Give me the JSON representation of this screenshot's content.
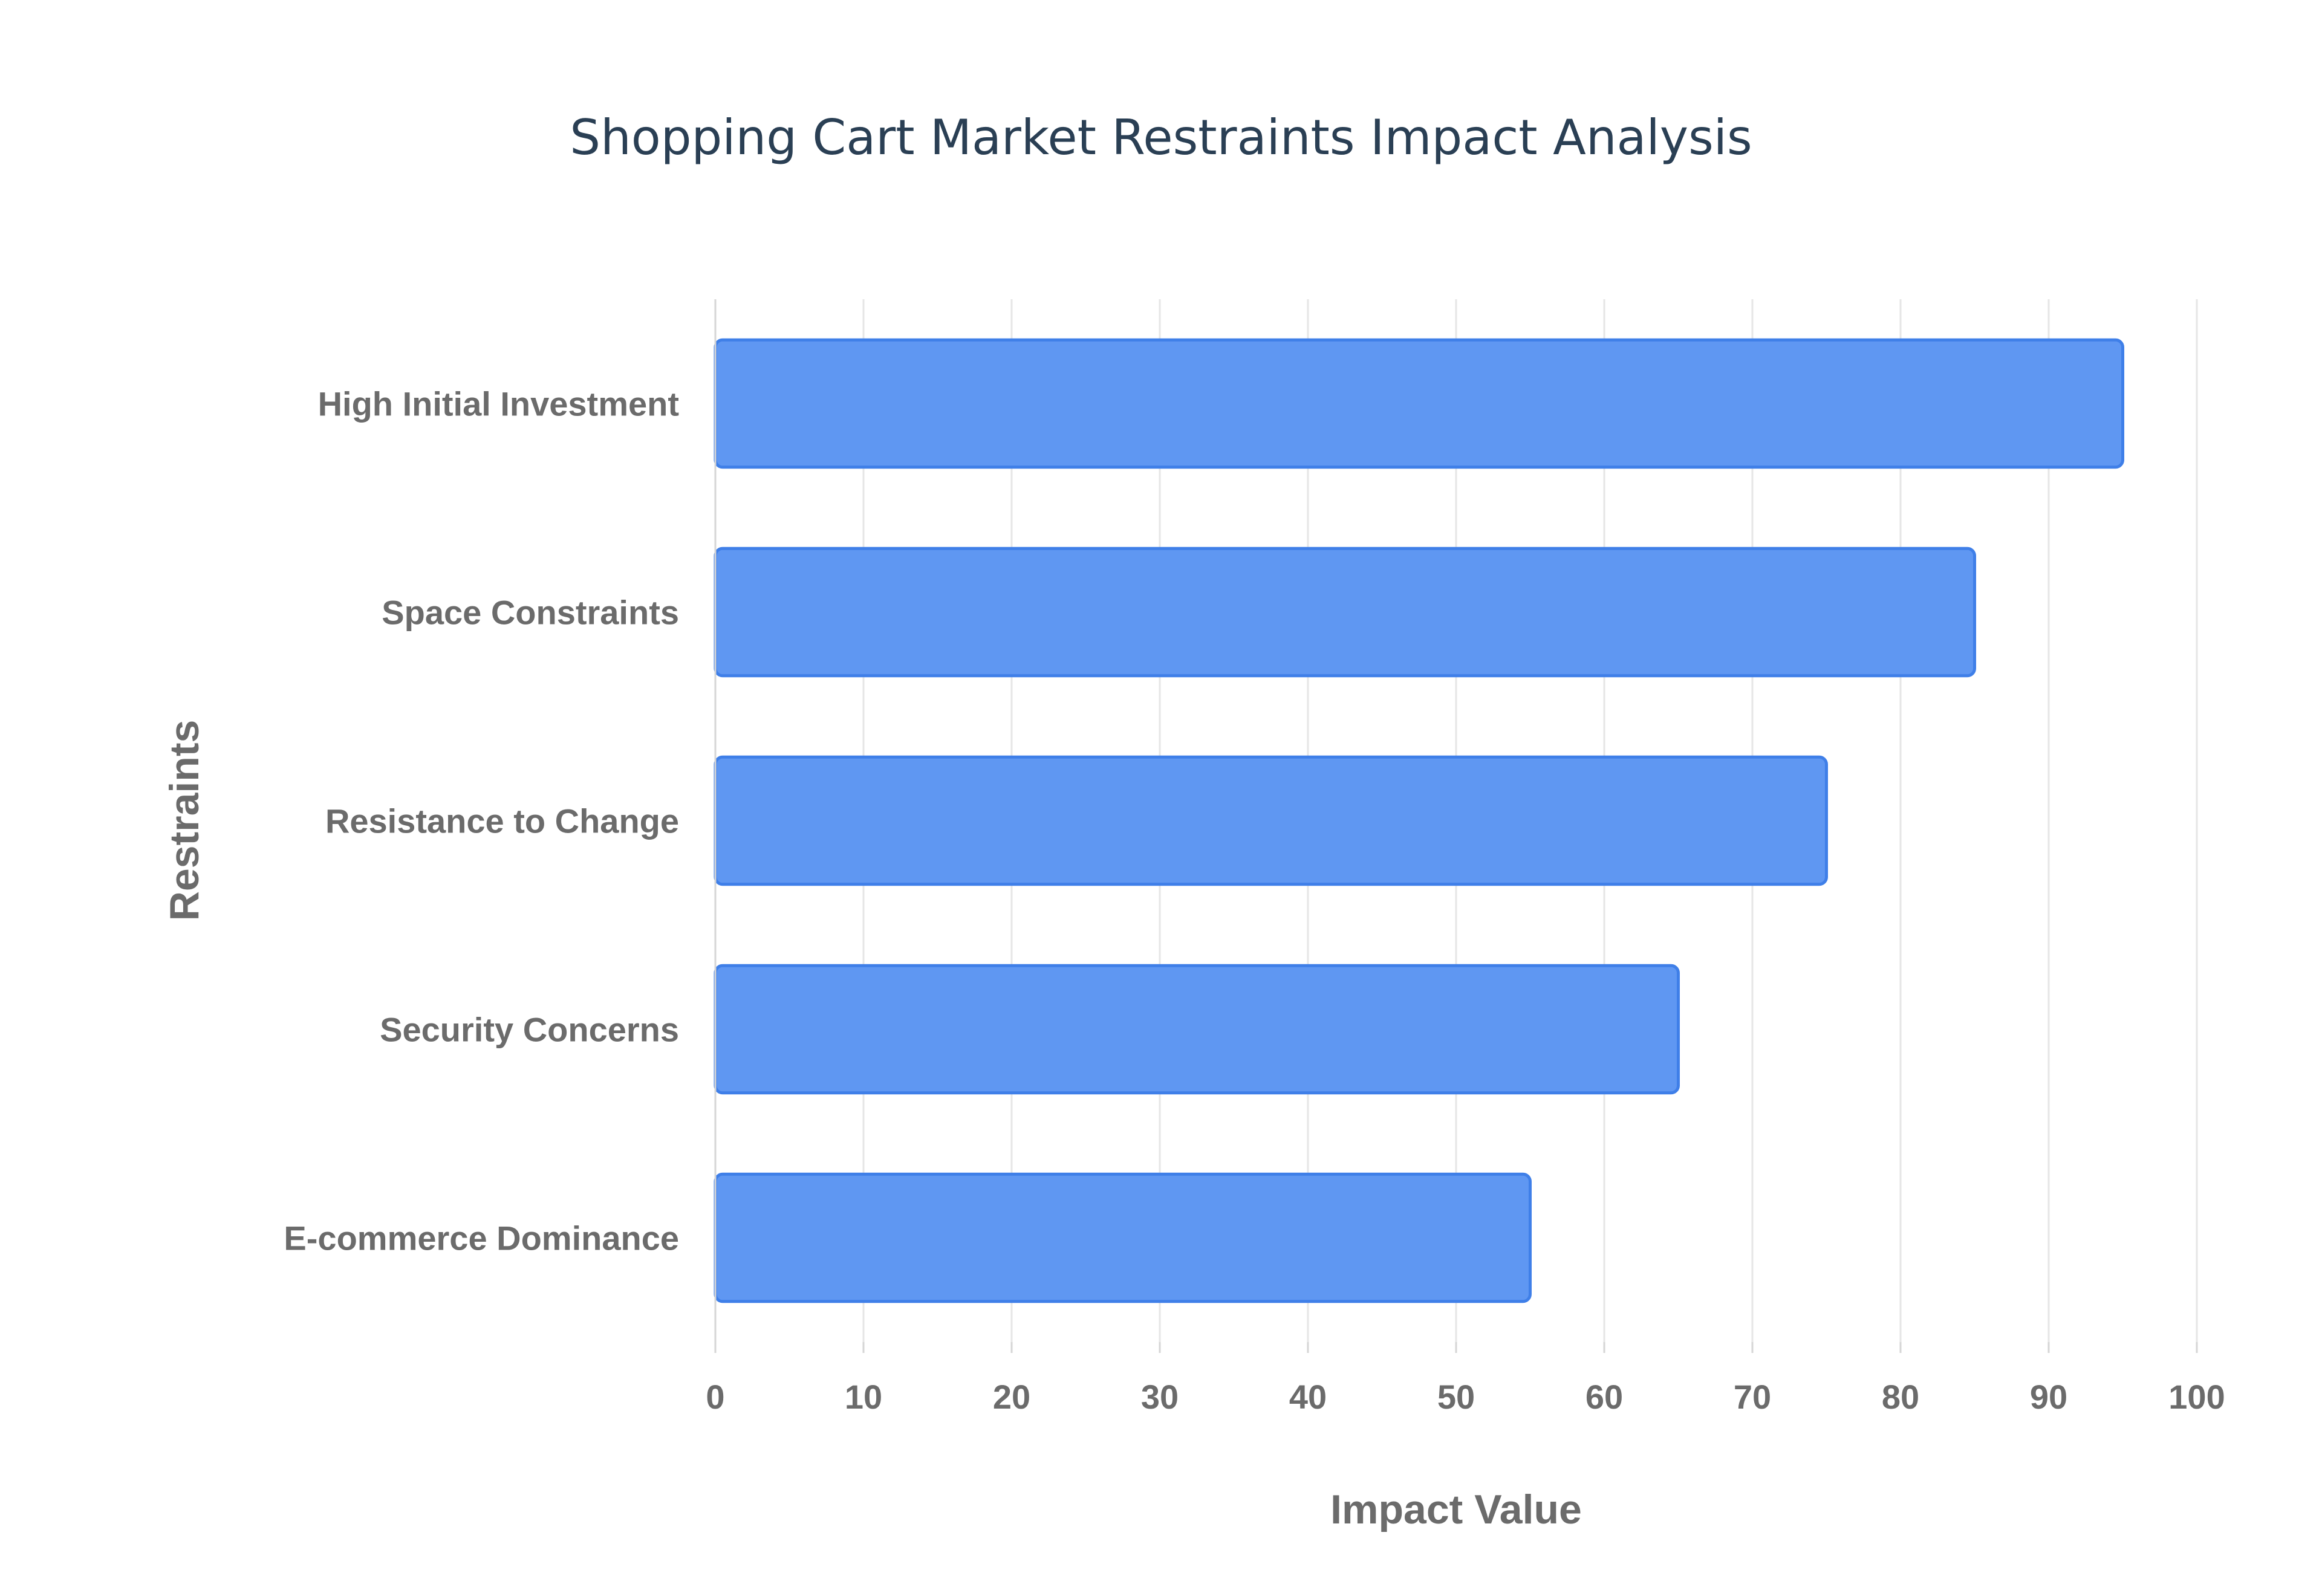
{
  "chart_data": {
    "type": "bar",
    "orientation": "horizontal",
    "title": "Shopping Cart Market Restraints Impact Analysis",
    "xlabel": "Impact Value",
    "ylabel": "Restraints",
    "categories": [
      "High Initial Investment",
      "Space Constraints",
      "Resistance to Change",
      "Security Concerns",
      "E-commerce Dominance"
    ],
    "values": [
      95,
      85,
      75,
      65,
      55
    ],
    "xlim": [
      0,
      100
    ],
    "xticks": [
      "0",
      "10",
      "20",
      "30",
      "40",
      "50",
      "60",
      "70",
      "80",
      "90",
      "100"
    ],
    "grid": true,
    "legend": "none",
    "colors": {
      "bar_fill": "#5f97f2",
      "bar_stroke": "#3f7fe8",
      "title": "#2a3f54",
      "labels": "#6b6b6b",
      "grid": "#e6e6e6"
    }
  }
}
